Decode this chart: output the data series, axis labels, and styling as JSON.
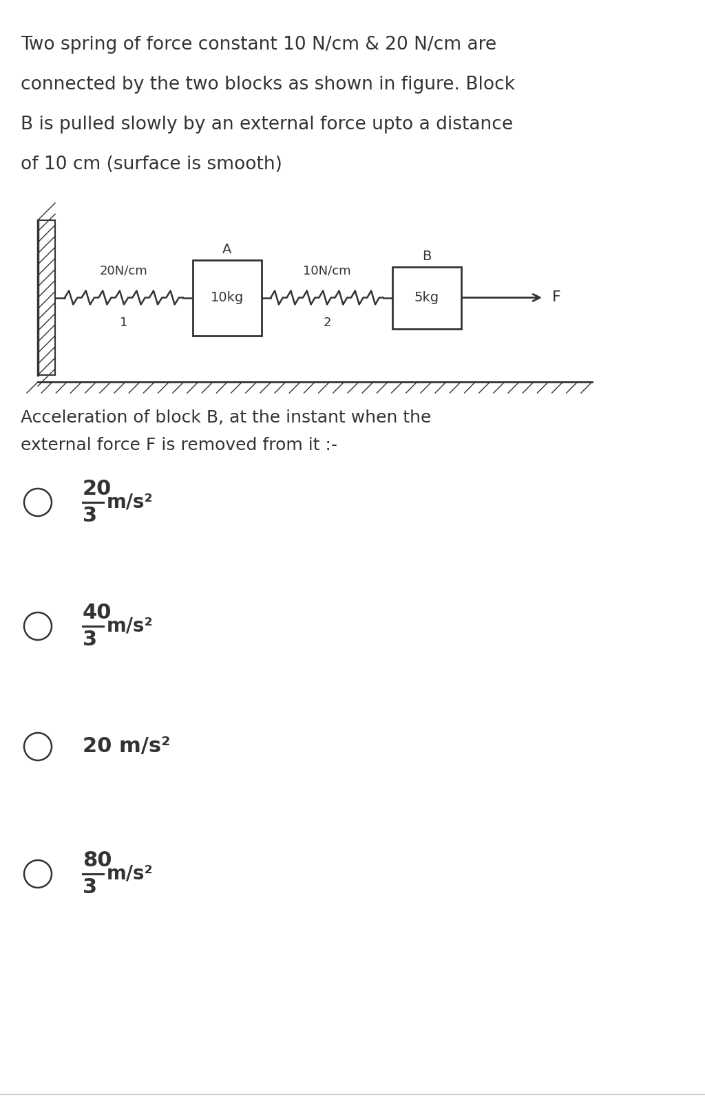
{
  "background_color": "#ffffff",
  "problem_text_lines": [
    "Two spring of force constant 10 N/cm & 20 N/cm are",
    "connected by the two blocks as shown in figure. Block",
    "B is pulled slowly by an external force upto a distance",
    "of 10 cm (surface is smooth)"
  ],
  "question_text_lines": [
    "Acceleration of block B, at the instant when the",
    "external force F is removed from it :-"
  ],
  "options": [
    {
      "numerator": "20",
      "denominator": "3",
      "unit": "m/s²"
    },
    {
      "numerator": "40",
      "denominator": "3",
      "unit": "m/s²"
    },
    {
      "numerator": "20",
      "denominator": "",
      "unit": "m/s²"
    },
    {
      "numerator": "80",
      "denominator": "3",
      "unit": "m/s²"
    }
  ],
  "diagram": {
    "spring1_label": "20N/cm",
    "spring1_number": "1",
    "spring2_label": "10N/cm",
    "spring2_number": "2",
    "block_A_label": "10kg",
    "block_B_label": "5kg",
    "label_A": "A",
    "label_B": "B",
    "force_label": "F"
  },
  "font_size_problem": 19,
  "font_size_diagram_label": 13,
  "font_size_diagram_block": 13,
  "font_size_question": 18,
  "font_size_option_num": 22,
  "font_size_option_unit": 20,
  "text_color": "#333333"
}
